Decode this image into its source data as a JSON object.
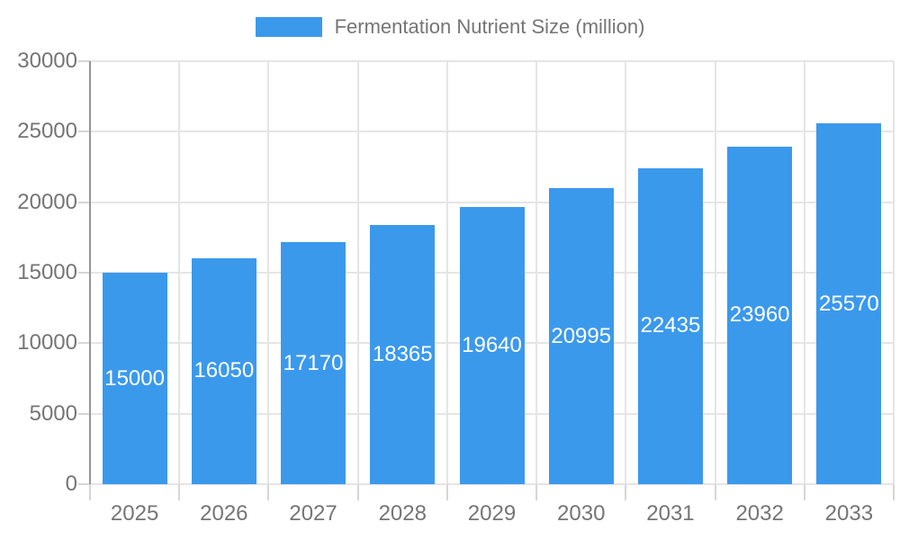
{
  "colors": {
    "bar": "#3B99EC",
    "grid": "#E5E5E5",
    "tick": "#D6D6D6",
    "axis": "#969696",
    "text": "#757575",
    "bar_label": "#FFFFFF",
    "background": "#FFFFFF"
  },
  "legend": {
    "label": "Fermentation Nutrient Size (million)"
  },
  "chart_data": {
    "type": "bar",
    "title": "Fermentation Nutrient Size (million)",
    "categories": [
      "2025",
      "2026",
      "2027",
      "2028",
      "2029",
      "2030",
      "2031",
      "2032",
      "2033"
    ],
    "values": [
      15000,
      16050,
      17170,
      18365,
      19640,
      20995,
      22435,
      23960,
      25570
    ],
    "xlabel": "",
    "ylabel": "",
    "ylim": [
      0,
      30000
    ],
    "yticks": [
      0,
      5000,
      10000,
      15000,
      20000,
      25000,
      30000
    ],
    "grid": true,
    "legend_position": "top",
    "bar_value_labels": true
  }
}
